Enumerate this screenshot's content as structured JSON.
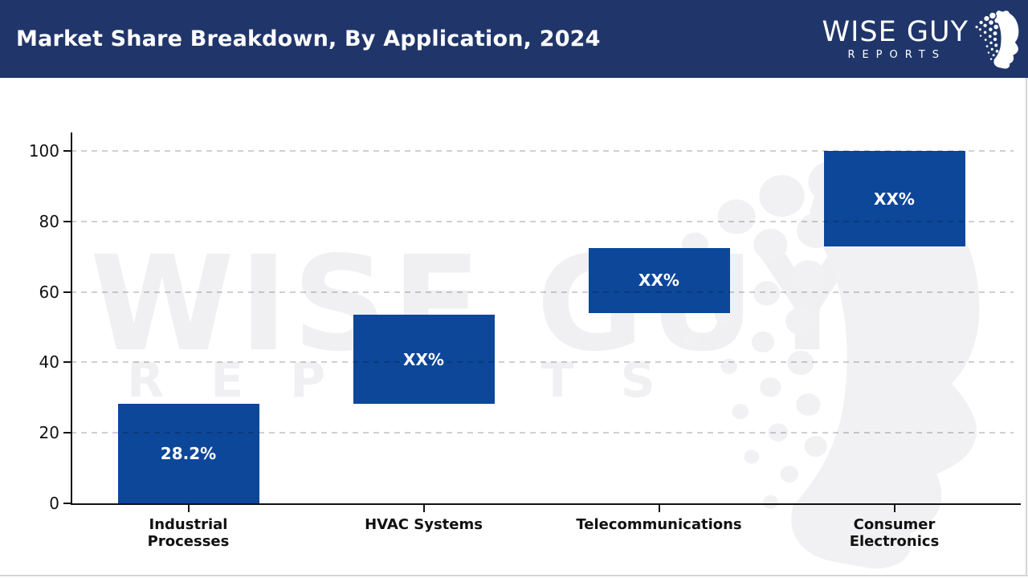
{
  "header": {
    "title": "Market Share Breakdown, By Application, 2024"
  },
  "logo": {
    "name": "WISE GUY",
    "sub": "REPORTS",
    "face_icon": "dotted-head-profile"
  },
  "watermark": {
    "name": "WISE GUY",
    "sub": "REPORTS",
    "face_icon": "dotted-head-profile"
  },
  "colors": {
    "header_bg": "#20366a",
    "bar": "#0c4799",
    "bar_label": "#ffffff",
    "axis": "#111111",
    "watermark": "#f0f0f2"
  },
  "chart_data": {
    "type": "bar",
    "subtype": "waterfall-floating-bars",
    "title": "Market Share Breakdown, By Application, 2024",
    "categories": [
      "Industrial Processes",
      "HVAC Systems",
      "Telecommunications",
      "Consumer Electronics"
    ],
    "category_display_lines": [
      [
        "Industrial",
        "Processes"
      ],
      [
        "HVAC Systems"
      ],
      [
        "Telecommunications"
      ],
      [
        "Consumer",
        "Electronics"
      ]
    ],
    "segments": [
      {
        "category": "Industrial Processes",
        "base": 0,
        "top": 28.2,
        "label": "28.2%"
      },
      {
        "category": "HVAC Systems",
        "base": 28.2,
        "top": 53.5,
        "label": "XX%"
      },
      {
        "category": "Telecommunications",
        "base": 54,
        "top": 72.5,
        "label": "XX%"
      },
      {
        "category": "Consumer Electronics",
        "base": 72.8,
        "top": 100,
        "label": "XX%"
      }
    ],
    "xlabel": "",
    "ylabel": "",
    "ylim": [
      0,
      100
    ],
    "yticks": [
      0,
      20,
      40,
      60,
      80,
      100
    ],
    "grid": "horizontal-dashed",
    "legend": "none"
  }
}
